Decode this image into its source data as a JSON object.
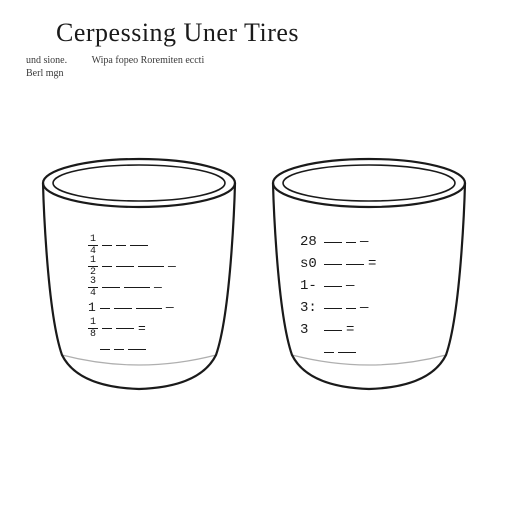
{
  "title": "Cerpessing Uner Tires",
  "subtitle": {
    "lead": "und sione.",
    "mid": "Wipa fopeo  Roremiten eccti",
    "line2": "Berl mgn"
  },
  "left_cup": {
    "rows": [
      {
        "num": "1",
        "den": "4",
        "ticks": [
          "s",
          "s",
          "m"
        ],
        "suffix": ""
      },
      {
        "num": "1",
        "den": "2",
        "ticks": [
          "s",
          "m",
          "l"
        ],
        "suffix": "—"
      },
      {
        "num": "3",
        "den": "4",
        "ticks": [
          "m",
          "l"
        ],
        "suffix": "—"
      },
      {
        "num": "",
        "den": "",
        "label": "1",
        "ticks": [
          "s",
          "m",
          "l"
        ],
        "suffix": "—"
      },
      {
        "num": "1",
        "den": "8",
        "ticks": [
          "s",
          "m"
        ],
        "suffix": "="
      },
      {
        "num": "",
        "den": "",
        "label": "",
        "ticks": [
          "s",
          "s",
          "m"
        ],
        "suffix": ""
      }
    ],
    "stroke": "#1a1a1a",
    "stroke_width": 2.2,
    "fill": "none"
  },
  "right_cup": {
    "rows": [
      {
        "label": "28",
        "ticks": [
          "m",
          "s"
        ],
        "suffix": "—"
      },
      {
        "label": "s0",
        "ticks": [
          "m",
          "m"
        ],
        "suffix": "="
      },
      {
        "label": "1-",
        "ticks": [
          "m"
        ],
        "suffix": "—"
      },
      {
        "label": "3:",
        "ticks": [
          "m",
          "s"
        ],
        "suffix": "—"
      },
      {
        "label": "3",
        "ticks": [
          "m"
        ],
        "suffix": "="
      },
      {
        "label": "",
        "ticks": [
          "s",
          "m"
        ],
        "suffix": ""
      }
    ],
    "stroke": "#1a1a1a",
    "stroke_width": 2.2,
    "fill": "none"
  },
  "colors": {
    "bg": "#ffffff",
    "ink": "#1a1a1a",
    "soft": "#3a3a3a"
  }
}
